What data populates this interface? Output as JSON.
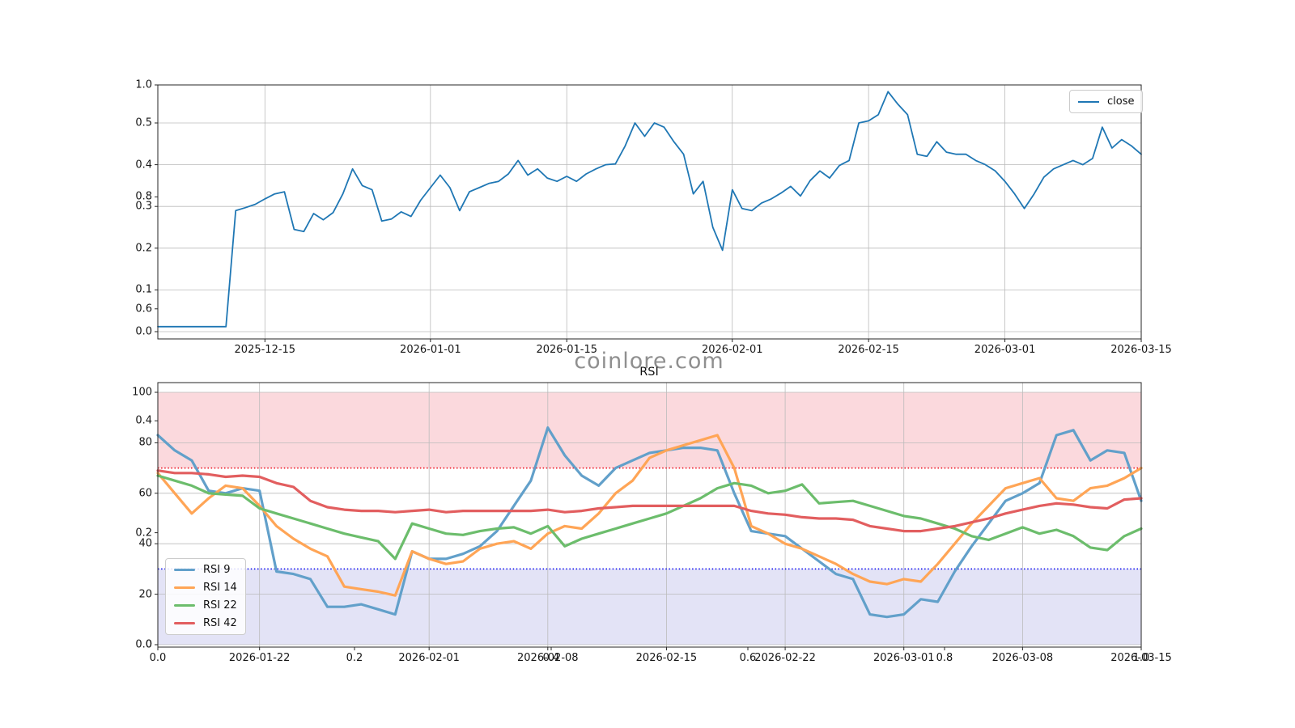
{
  "watermark": "coinlore.com",
  "style": {
    "background": "#ffffff",
    "grid_color": "#bbbbbb",
    "spine_color": "#262626",
    "tick_label_color": "#161616",
    "watermark_color": "#8f8f8f"
  },
  "overlay_axis": {
    "x_ticks": [
      "0.0",
      "0.2",
      "0.4",
      "0.6",
      "0.8",
      "1.0"
    ],
    "y_ticks": [
      "0.0",
      "0.2",
      "0.4",
      "0.6",
      "0.8",
      "1.0"
    ]
  },
  "chart_data": [
    {
      "id": "price",
      "type": "line",
      "title": "",
      "xlabel": "",
      "ylabel": "",
      "grid": true,
      "x_axis": {
        "start_date": "2025-12-04",
        "end_date": "2026-03-15",
        "ticks": [
          {
            "label": "2025-12-15",
            "day": 11
          },
          {
            "label": "2026-01-01",
            "day": 28
          },
          {
            "label": "2026-01-15",
            "day": 42
          },
          {
            "label": "2026-02-01",
            "day": 59
          },
          {
            "label": "2026-02-15",
            "day": 73
          },
          {
            "label": "2026-03-01",
            "day": 87
          },
          {
            "label": "2026-03-15",
            "day": 101
          }
        ]
      },
      "y_axis": {
        "ticks": [
          {
            "label": "0.0",
            "value": 0.0
          },
          {
            "label": "0.1",
            "value": 0.1
          },
          {
            "label": "0.2",
            "value": 0.2
          },
          {
            "label": "0.3",
            "value": 0.3
          },
          {
            "label": "0.4",
            "value": 0.4
          },
          {
            "label": "0.5",
            "value": 0.5
          }
        ],
        "ylim": [
          -0.017,
          0.591
        ]
      },
      "legend": {
        "location": "upper right",
        "entries": [
          {
            "label": "close"
          }
        ]
      },
      "series": [
        {
          "name": "close",
          "color": "#1f77b4",
          "line_width": 1.8,
          "values": [
            0.012,
            0.012,
            0.012,
            0.012,
            0.012,
            0.012,
            0.012,
            0.012,
            0.29,
            0.297,
            0.305,
            0.318,
            0.33,
            0.335,
            0.245,
            0.24,
            0.283,
            0.268,
            0.285,
            0.33,
            0.39,
            0.35,
            0.34,
            0.265,
            0.27,
            0.287,
            0.276,
            0.315,
            0.345,
            0.375,
            0.345,
            0.29,
            0.335,
            0.345,
            0.355,
            0.36,
            0.378,
            0.41,
            0.375,
            0.39,
            0.368,
            0.36,
            0.372,
            0.36,
            0.378,
            0.39,
            0.4,
            0.402,
            0.445,
            0.5,
            0.468,
            0.5,
            0.49,
            0.455,
            0.425,
            0.33,
            0.36,
            0.25,
            0.195,
            0.34,
            0.295,
            0.29,
            0.308,
            0.318,
            0.332,
            0.348,
            0.325,
            0.362,
            0.385,
            0.368,
            0.398,
            0.41,
            0.5,
            0.505,
            0.52,
            0.575,
            0.545,
            0.52,
            0.425,
            0.42,
            0.455,
            0.43,
            0.425,
            0.425,
            0.41,
            0.4,
            0.385,
            0.36,
            0.33,
            0.295,
            0.33,
            0.37,
            0.39,
            0.4,
            0.41,
            0.4,
            0.415,
            0.49,
            0.44,
            0.46,
            0.445,
            0.425
          ]
        }
      ]
    },
    {
      "id": "rsi",
      "type": "line",
      "title": "RSI",
      "xlabel": "",
      "ylabel": "",
      "grid": true,
      "x_axis": {
        "start_date": "2026-01-16",
        "end_date": "2026-03-15",
        "ticks": [
          {
            "label": "2026-01-22",
            "day": 6
          },
          {
            "label": "2026-02-01",
            "day": 16
          },
          {
            "label": "2026-02-08",
            "day": 23
          },
          {
            "label": "2026-02-15",
            "day": 30
          },
          {
            "label": "2026-02-22",
            "day": 37
          },
          {
            "label": "2026-03-01",
            "day": 44
          },
          {
            "label": "2026-03-08",
            "day": 51
          },
          {
            "label": "2026-03-15",
            "day": 58
          }
        ]
      },
      "y_axis": {
        "ticks": [
          {
            "label": "0",
            "value": 0
          },
          {
            "label": "20",
            "value": 20
          },
          {
            "label": "40",
            "value": 40
          },
          {
            "label": "60",
            "value": 60
          },
          {
            "label": "80",
            "value": 80
          },
          {
            "label": "100",
            "value": 100
          }
        ],
        "ylim": [
          -1,
          104
        ]
      },
      "bands": [
        {
          "name": "overbought-band",
          "from": 70,
          "to": 100,
          "color": "#fbd9dd"
        },
        {
          "name": "oversold-band",
          "from": 0,
          "to": 30,
          "color": "#e3e3f6"
        }
      ],
      "hlines": [
        {
          "name": "overbought-threshold",
          "value": 70,
          "color": "#ee0011",
          "style": "dotted"
        },
        {
          "name": "oversold-threshold",
          "value": 30,
          "color": "#0000ee",
          "style": "dotted"
        }
      ],
      "legend": {
        "location": "lower left",
        "entries": [
          {
            "label": "RSI 9"
          },
          {
            "label": "RSI 14"
          },
          {
            "label": "RSI 22"
          },
          {
            "label": "RSI 42"
          }
        ]
      },
      "series": [
        {
          "name": "RSI 9",
          "color": "#62a0ca",
          "line_width": 3.2,
          "values": [
            83,
            77,
            73,
            61,
            60,
            62,
            61,
            29,
            28,
            26,
            15,
            15,
            16,
            14,
            12,
            37,
            34,
            34,
            36,
            39,
            45,
            55,
            65,
            86,
            75,
            67,
            63,
            70,
            73,
            76,
            77,
            78,
            78,
            77,
            60,
            45,
            44,
            43,
            38,
            33,
            28,
            26,
            12,
            11,
            12,
            18,
            17,
            29,
            39,
            48,
            57,
            60,
            64,
            83,
            85,
            73,
            77,
            76,
            57
          ]
        },
        {
          "name": "RSI 14",
          "color": "#ffa556",
          "line_width": 3.2,
          "values": [
            68,
            60,
            52,
            58,
            63,
            62,
            55,
            47,
            42,
            38,
            35,
            23,
            22,
            21,
            19.5,
            37,
            34,
            32,
            33,
            38,
            40,
            41,
            38,
            44,
            47,
            46,
            52,
            60,
            65,
            74,
            77,
            79,
            81,
            83,
            70,
            47,
            44,
            40,
            38,
            35,
            32,
            28,
            25,
            24,
            26,
            25,
            32,
            40,
            48,
            55,
            62,
            64,
            66,
            58,
            57,
            62,
            63,
            66,
            70
          ]
        },
        {
          "name": "RSI 22",
          "color": "#6cbd6c",
          "line_width": 3.2,
          "values": [
            67,
            65,
            63,
            60,
            59.5,
            59,
            54,
            52,
            50,
            48,
            46,
            44,
            42.5,
            41,
            34,
            48,
            46,
            44,
            43.5,
            45,
            46,
            46.5,
            44,
            47,
            39,
            42,
            44,
            46,
            48,
            50,
            52,
            55,
            58,
            62,
            64,
            63,
            60,
            61,
            63.5,
            56,
            56.5,
            57,
            55,
            53,
            51,
            50,
            48,
            46,
            43,
            41.5,
            44,
            46.5,
            44,
            45.5,
            43,
            38.5,
            37.5,
            43,
            46
          ]
        },
        {
          "name": "RSI 42",
          "color": "#e25e5f",
          "line_width": 3.2,
          "values": [
            69,
            68,
            68,
            67.5,
            66.5,
            67,
            66.5,
            64,
            62.5,
            57,
            54.5,
            53.5,
            53,
            53,
            52.5,
            53,
            53.5,
            52.5,
            53,
            53,
            53,
            53,
            53,
            53.5,
            52.5,
            53,
            54,
            54.5,
            55,
            55,
            55,
            55,
            55,
            55,
            55,
            53,
            52,
            51.5,
            50.5,
            50,
            50,
            49.5,
            47,
            46,
            45,
            45,
            46,
            47,
            48.5,
            50,
            52,
            53.5,
            55,
            56,
            55.5,
            54.5,
            54,
            57.5,
            58
          ]
        }
      ]
    }
  ]
}
